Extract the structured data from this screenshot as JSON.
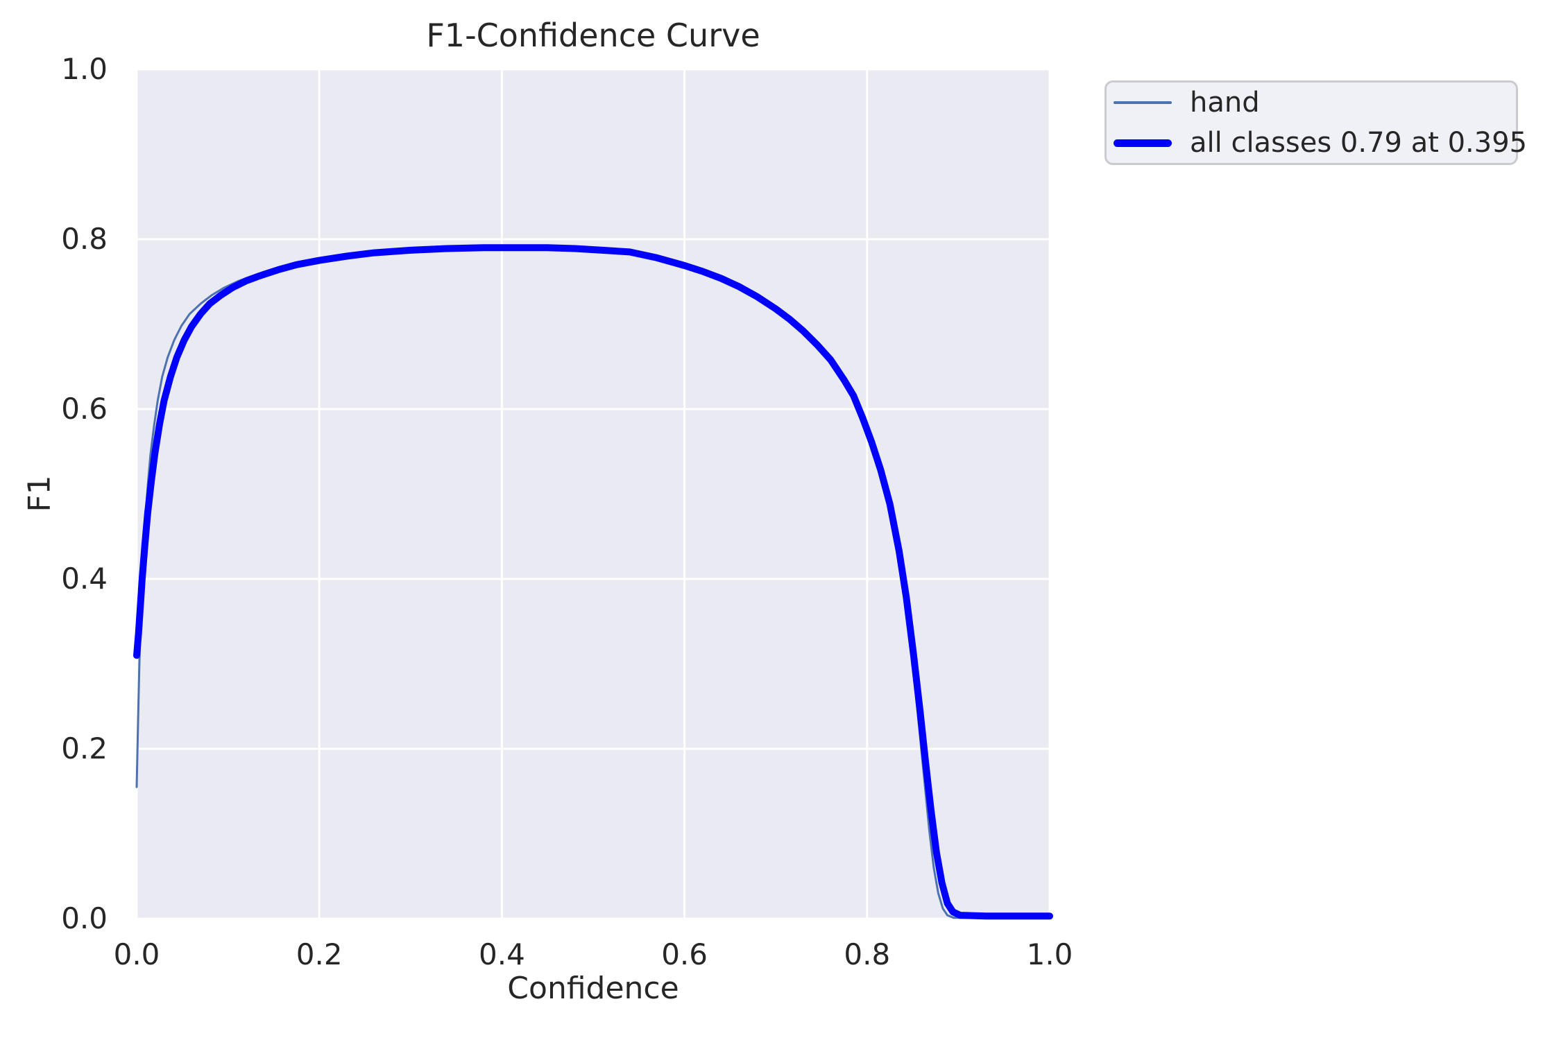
{
  "figure": {
    "title": "F1-Confidence Curve"
  },
  "chart_data": {
    "type": "line",
    "title": "F1-Confidence Curve",
    "xlabel": "Confidence",
    "ylabel": "F1",
    "xlim": [
      0.0,
      1.0
    ],
    "ylim": [
      0.0,
      1.0
    ],
    "xticks": [
      "0.0",
      "0.2",
      "0.4",
      "0.6",
      "0.8",
      "1.0"
    ],
    "yticks": [
      "0.0",
      "0.2",
      "0.4",
      "0.6",
      "0.8",
      "1.0"
    ],
    "grid": true,
    "legend_position": "outside-upper-right",
    "colors": {
      "plot_background": "#eaeaf2",
      "gridline": "#ffffff",
      "text": "#262626",
      "hand_line": "#4c72b0",
      "all_classes_line": "#0000ff",
      "legend_background": "#f0f0f7",
      "legend_border": "#cacad1"
    },
    "annotations": {
      "best_f1": 0.79,
      "best_confidence": 0.395
    },
    "legend": [
      {
        "label": "hand",
        "color": "#4c72b0",
        "thickness": 4
      },
      {
        "label": "all classes 0.79 at 0.395",
        "color": "#0000ff",
        "thickness": 11
      }
    ],
    "series": [
      {
        "name": "hand",
        "color": "#4c72b0",
        "line_width": 3,
        "points": [
          [
            0.0,
            0.155
          ],
          [
            0.001,
            0.205
          ],
          [
            0.002,
            0.255
          ],
          [
            0.003,
            0.3
          ],
          [
            0.005,
            0.368
          ],
          [
            0.007,
            0.42
          ],
          [
            0.009,
            0.462
          ],
          [
            0.012,
            0.508
          ],
          [
            0.015,
            0.545
          ],
          [
            0.019,
            0.58
          ],
          [
            0.023,
            0.61
          ],
          [
            0.028,
            0.638
          ],
          [
            0.034,
            0.661
          ],
          [
            0.041,
            0.681
          ],
          [
            0.049,
            0.698
          ],
          [
            0.058,
            0.712
          ],
          [
            0.07,
            0.724
          ],
          [
            0.082,
            0.734
          ],
          [
            0.096,
            0.743
          ],
          [
            0.112,
            0.751
          ],
          [
            0.13,
            0.758
          ],
          [
            0.15,
            0.765
          ],
          [
            0.175,
            0.771
          ],
          [
            0.2,
            0.776
          ],
          [
            0.23,
            0.781
          ],
          [
            0.26,
            0.784
          ],
          [
            0.3,
            0.787
          ],
          [
            0.34,
            0.789
          ],
          [
            0.38,
            0.79
          ],
          [
            0.42,
            0.79
          ],
          [
            0.45,
            0.79
          ],
          [
            0.48,
            0.789
          ],
          [
            0.51,
            0.787
          ],
          [
            0.54,
            0.785
          ],
          [
            0.57,
            0.778
          ],
          [
            0.6,
            0.769
          ],
          [
            0.62,
            0.762
          ],
          [
            0.64,
            0.754
          ],
          [
            0.66,
            0.744
          ],
          [
            0.68,
            0.732
          ],
          [
            0.7,
            0.719
          ],
          [
            0.715,
            0.707
          ],
          [
            0.73,
            0.693
          ],
          [
            0.745,
            0.677
          ],
          [
            0.76,
            0.658
          ],
          [
            0.775,
            0.633
          ],
          [
            0.785,
            0.613
          ],
          [
            0.795,
            0.585
          ],
          [
            0.805,
            0.555
          ],
          [
            0.815,
            0.52
          ],
          [
            0.825,
            0.478
          ],
          [
            0.835,
            0.42
          ],
          [
            0.843,
            0.362
          ],
          [
            0.85,
            0.3
          ],
          [
            0.857,
            0.225
          ],
          [
            0.863,
            0.16
          ],
          [
            0.868,
            0.105
          ],
          [
            0.873,
            0.06
          ],
          [
            0.878,
            0.03
          ],
          [
            0.883,
            0.012
          ],
          [
            0.888,
            0.004
          ],
          [
            0.895,
            0.001
          ],
          [
            1.0,
            0.001
          ]
        ]
      },
      {
        "name": "all classes",
        "color": "#0000ff",
        "line_width": 10,
        "points": [
          [
            0.0,
            0.31
          ],
          [
            0.002,
            0.335
          ],
          [
            0.004,
            0.368
          ],
          [
            0.006,
            0.4
          ],
          [
            0.009,
            0.44
          ],
          [
            0.012,
            0.477
          ],
          [
            0.016,
            0.515
          ],
          [
            0.02,
            0.548
          ],
          [
            0.025,
            0.582
          ],
          [
            0.03,
            0.61
          ],
          [
            0.037,
            0.638
          ],
          [
            0.044,
            0.661
          ],
          [
            0.052,
            0.681
          ],
          [
            0.06,
            0.697
          ],
          [
            0.07,
            0.712
          ],
          [
            0.08,
            0.724
          ],
          [
            0.092,
            0.734
          ],
          [
            0.105,
            0.743
          ],
          [
            0.12,
            0.751
          ],
          [
            0.135,
            0.757
          ],
          [
            0.155,
            0.764
          ],
          [
            0.175,
            0.77
          ],
          [
            0.2,
            0.775
          ],
          [
            0.23,
            0.78
          ],
          [
            0.26,
            0.784
          ],
          [
            0.3,
            0.787
          ],
          [
            0.34,
            0.789
          ],
          [
            0.38,
            0.79
          ],
          [
            0.42,
            0.79
          ],
          [
            0.45,
            0.79
          ],
          [
            0.48,
            0.789
          ],
          [
            0.51,
            0.787
          ],
          [
            0.54,
            0.785
          ],
          [
            0.57,
            0.778
          ],
          [
            0.6,
            0.769
          ],
          [
            0.62,
            0.762
          ],
          [
            0.64,
            0.754
          ],
          [
            0.66,
            0.744
          ],
          [
            0.68,
            0.732
          ],
          [
            0.7,
            0.718
          ],
          [
            0.715,
            0.706
          ],
          [
            0.73,
            0.692
          ],
          [
            0.745,
            0.676
          ],
          [
            0.76,
            0.658
          ],
          [
            0.775,
            0.634
          ],
          [
            0.785,
            0.616
          ],
          [
            0.795,
            0.59
          ],
          [
            0.805,
            0.561
          ],
          [
            0.815,
            0.528
          ],
          [
            0.825,
            0.488
          ],
          [
            0.835,
            0.433
          ],
          [
            0.843,
            0.378
          ],
          [
            0.851,
            0.31
          ],
          [
            0.858,
            0.245
          ],
          [
            0.864,
            0.185
          ],
          [
            0.87,
            0.128
          ],
          [
            0.876,
            0.078
          ],
          [
            0.882,
            0.042
          ],
          [
            0.888,
            0.018
          ],
          [
            0.894,
            0.008
          ],
          [
            0.902,
            0.004
          ],
          [
            0.93,
            0.003
          ],
          [
            1.0,
            0.003
          ]
        ]
      }
    ]
  }
}
